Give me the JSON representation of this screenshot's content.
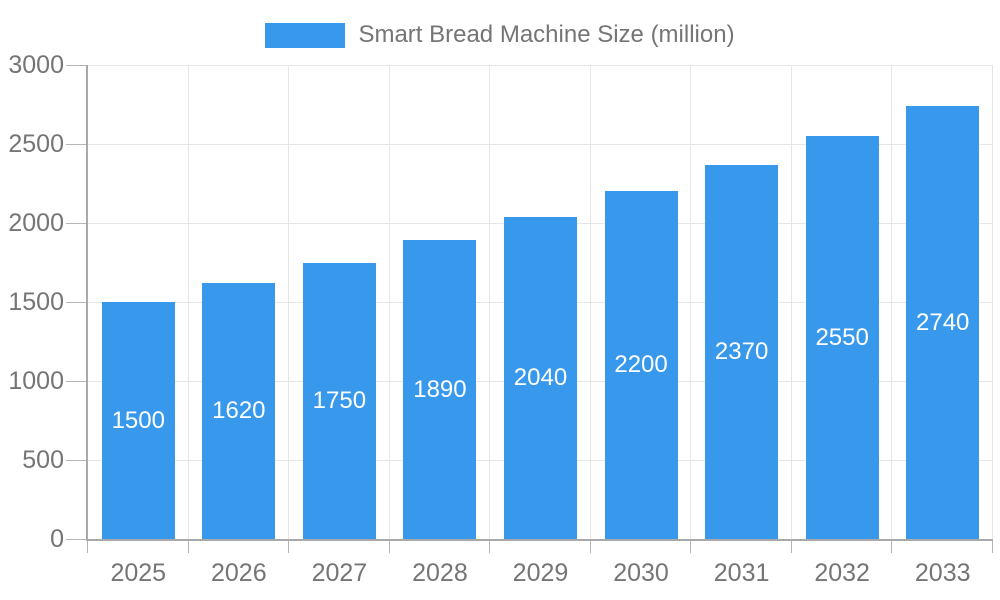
{
  "legend": {
    "label": "Smart Bread Machine Size (million)"
  },
  "chart_data": {
    "type": "bar",
    "title": "Smart Bread Machine Size (million)",
    "categories": [
      "2025",
      "2026",
      "2027",
      "2028",
      "2029",
      "2030",
      "2031",
      "2032",
      "2033"
    ],
    "values": [
      1500,
      1620,
      1750,
      1890,
      2040,
      2200,
      2370,
      2550,
      2740
    ],
    "xlabel": "",
    "ylabel": "",
    "ylim": [
      0,
      3000
    ],
    "yticks": [
      0,
      500,
      1000,
      1500,
      2000,
      2500,
      3000
    ],
    "grid": true,
    "legend_position": "top-center",
    "value_labels": "inside-center",
    "colors": {
      "bar": "#3899EC",
      "axis_line": "#a9a9a9",
      "grid_line": "#e6e6e6",
      "tick": "#b5b5b5",
      "axis_text": "#757575",
      "value_text": "#ffffff"
    }
  }
}
